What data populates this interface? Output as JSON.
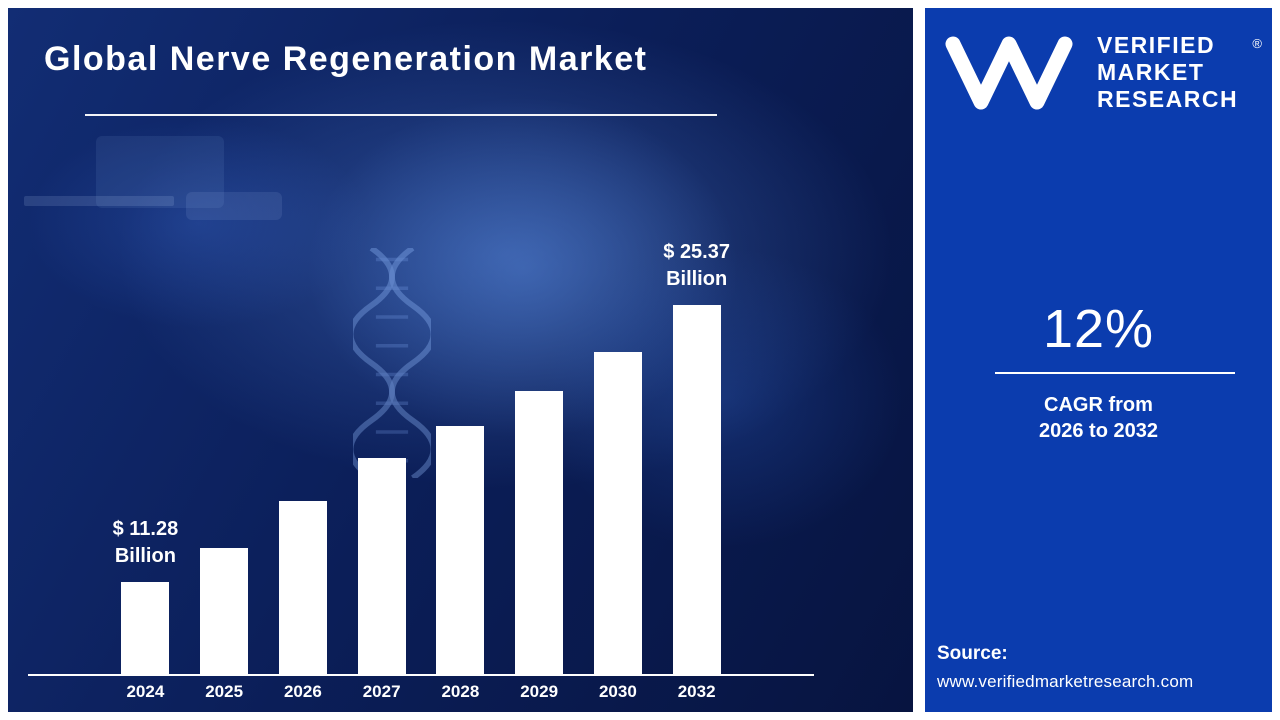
{
  "header": {
    "title": "Global Nerve Regeneration Market"
  },
  "chart_data": {
    "type": "bar",
    "title": "Global Nerve Regeneration Market",
    "categories": [
      "2024",
      "2025",
      "2026",
      "2027",
      "2028",
      "2029",
      "2030",
      "2032"
    ],
    "values": [
      11.28,
      13.0,
      15.4,
      17.6,
      19.2,
      21.0,
      23.0,
      25.37
    ],
    "xlabel": "",
    "ylabel": "",
    "ylim": [
      0,
      27
    ],
    "grid": false,
    "legend": false,
    "bar_color": "#ffffff",
    "annotations": [
      {
        "index": 0,
        "lines": [
          "$ 11.28",
          "Billion"
        ]
      },
      {
        "index": 7,
        "lines": [
          "$ 25.37",
          "Billion"
        ]
      }
    ]
  },
  "panel": {
    "logo": {
      "icon": "vmr-monogram-icon",
      "lines": [
        "VERIFIED",
        "MARKET",
        "RESEARCH"
      ],
      "registered_mark": "®"
    },
    "stat": {
      "value": "12%",
      "caption_line1": "CAGR from",
      "caption_line2": "2026 to 2032"
    },
    "source": {
      "label": "Source:",
      "url": "www.verifiedmarketresearch.com"
    }
  },
  "colors": {
    "scene_background": "#0b1e58",
    "panel_background": "#0b3cae",
    "bar": "#ffffff",
    "text": "#ffffff"
  }
}
